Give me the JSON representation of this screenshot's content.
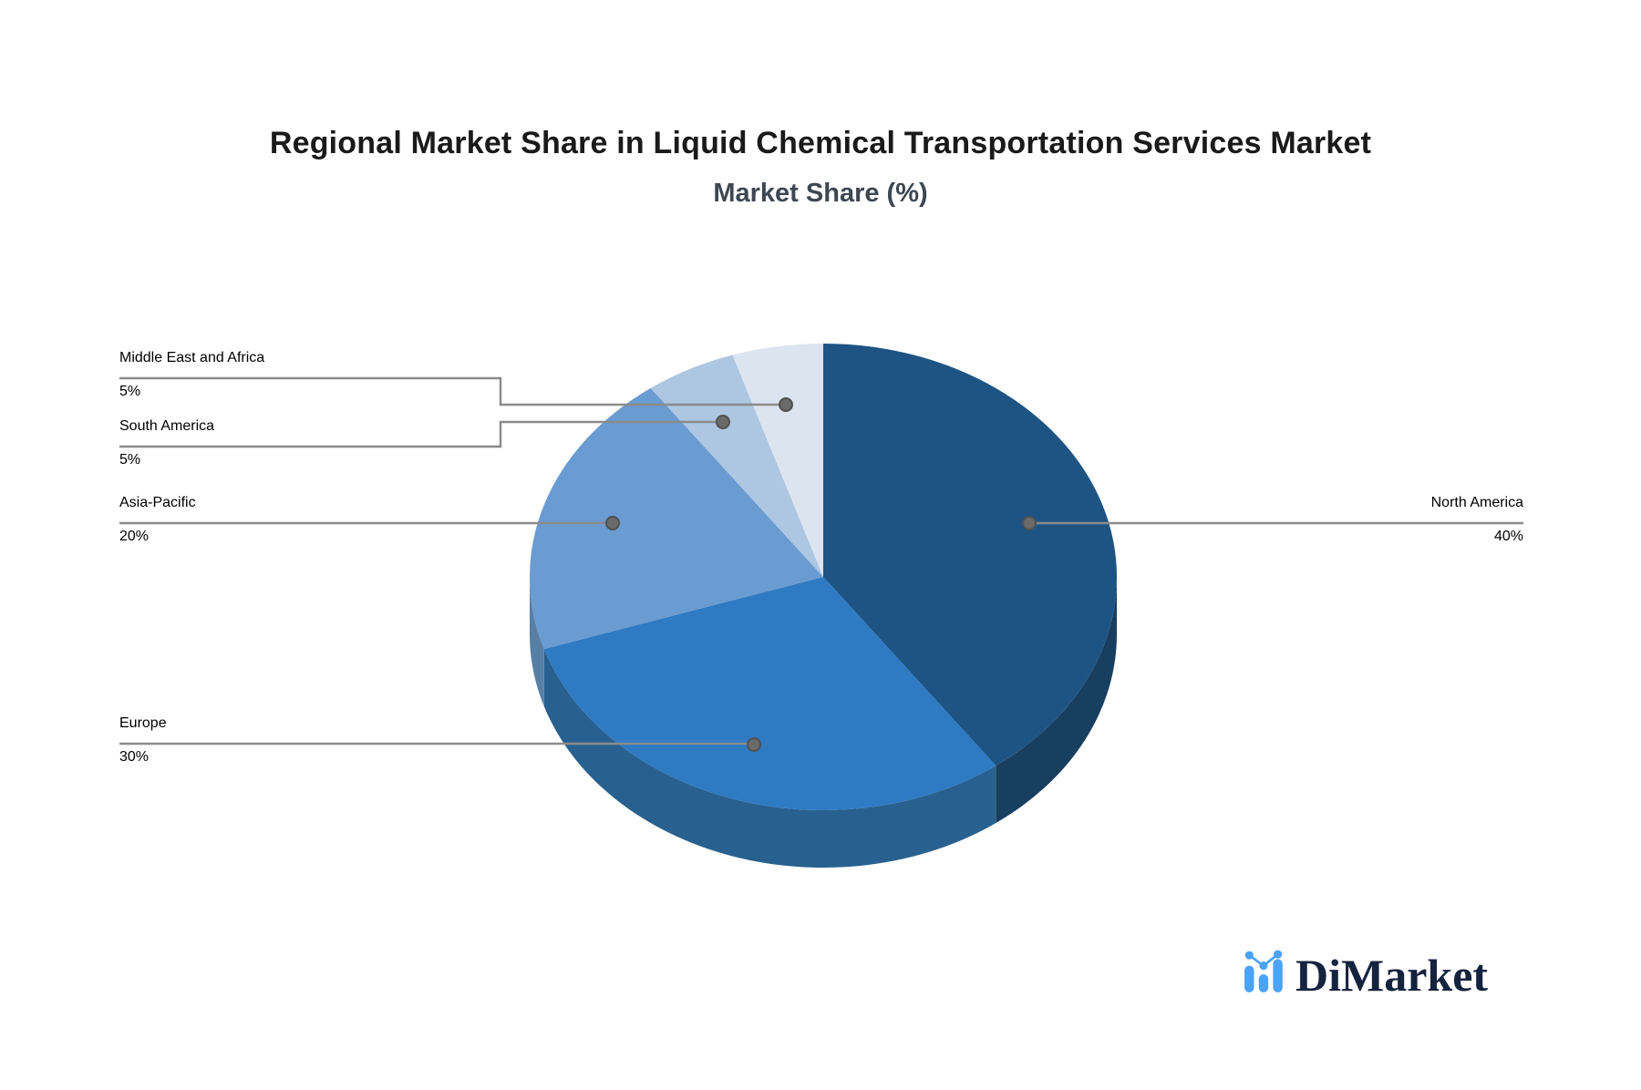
{
  "header": {
    "title": "Regional Market Share in Liquid Chemical Transportation Services Market",
    "subtitle": "Market Share (%)"
  },
  "chart_data": {
    "type": "pie",
    "style": "3d",
    "title": "Regional Market Share in Liquid Chemical Transportation Services Market",
    "subtitle": "Market Share (%)",
    "unit": "%",
    "legend_position": "callout-labels",
    "start_angle_deg": 0,
    "direction": "clockwise",
    "labels": [
      "North America",
      "Europe",
      "Asia-Pacific",
      "South America",
      "Middle East and Africa"
    ],
    "values": [
      40,
      30,
      20,
      5,
      5
    ],
    "slice_colors": [
      "#1E5483",
      "#2E7AC3",
      "#6A9BD1",
      "#ADC6E2",
      "#DCE4EF"
    ],
    "side_colors": [
      "#183E60",
      "#28618F",
      "#587FA5",
      "#93AECC",
      "#C3D0E0"
    ]
  },
  "regions": [
    {
      "label": "North America",
      "value": 40,
      "value_label": "40%"
    },
    {
      "label": "Europe",
      "value": 30,
      "value_label": "30%"
    },
    {
      "label": "Asia-Pacific",
      "value": 20,
      "value_label": "20%"
    },
    {
      "label": "South America",
      "value": 5,
      "value_label": "5%"
    },
    {
      "label": "Middle East and Africa",
      "value": 5,
      "value_label": "5%"
    }
  ],
  "branding": {
    "logo_text": "DiMarket",
    "logo_icon": "bar-chart-icon",
    "logo_text_color": "#15233e",
    "logo_icon_color": "#4BA3F7"
  },
  "colors": {
    "background": "#ffffff",
    "title_text": "#1a1a1a",
    "subtitle_text": "#3d4752",
    "label_text": "#262626",
    "percent_text": "#9b9b9b",
    "leader_line": "#8b8b8b",
    "leader_dot": "#6a6a6a"
  }
}
